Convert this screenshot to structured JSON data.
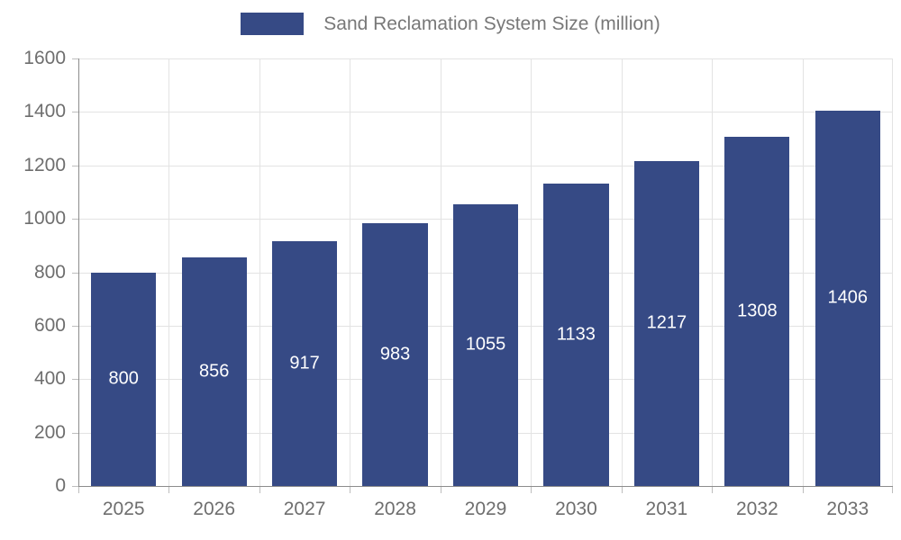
{
  "chart_data": {
    "type": "bar",
    "title": "Sand Reclamation System Size (million)",
    "categories": [
      "2025",
      "2026",
      "2027",
      "2028",
      "2029",
      "2030",
      "2031",
      "2032",
      "2033"
    ],
    "values": [
      800,
      856,
      917,
      983,
      1055,
      1133,
      1217,
      1308,
      1406
    ],
    "xlabel": "",
    "ylabel": "",
    "ylim": [
      0,
      1600
    ],
    "ytick_step": 200,
    "ytick_labels": [
      "0",
      "200",
      "400",
      "600",
      "800",
      "1000",
      "1200",
      "1400",
      "1600"
    ],
    "grid": true,
    "legend_position": "top-center",
    "legend_entries": [
      "Sand Reclamation System Size (million)"
    ]
  },
  "colors": {
    "bar": "#364a85",
    "grid": "#e3e3e3",
    "axis": "#8c8c8c",
    "tick_label": "#6e6e6e",
    "legend_text": "#787878",
    "value_label": "#ffffff",
    "background": "#ffffff"
  }
}
